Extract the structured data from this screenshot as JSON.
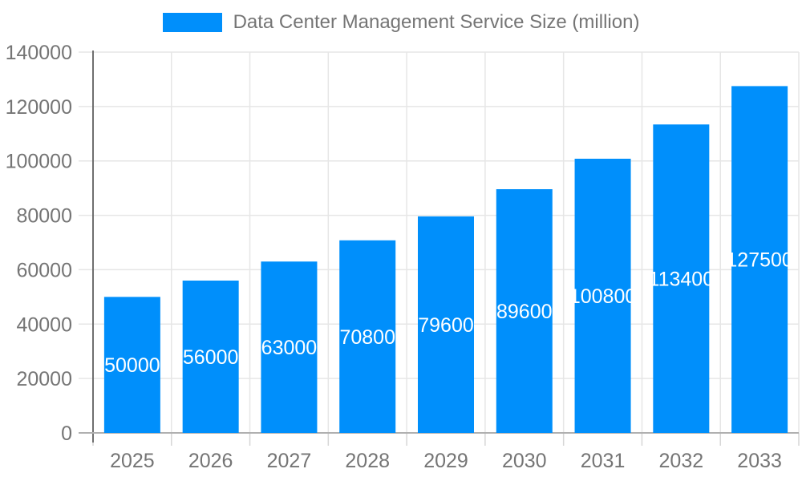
{
  "legend": {
    "swatch_color": "#008FFB",
    "label": "Data Center Management Service Size (million)"
  },
  "chart_data": {
    "type": "bar",
    "title": "Data Center Management Service Size (million)",
    "series_name": "Data Center Management Service Size (million)",
    "categories": [
      "2025",
      "2026",
      "2027",
      "2028",
      "2029",
      "2030",
      "2031",
      "2032",
      "2033"
    ],
    "values": [
      50000,
      56000,
      63000,
      70800,
      79600,
      89600,
      100800,
      113400,
      127500
    ],
    "xlabel": "",
    "ylabel": "",
    "ylim": [
      0,
      140000
    ],
    "ytick_step": 20000,
    "yticks": [
      0,
      20000,
      40000,
      60000,
      80000,
      100000,
      120000,
      140000
    ],
    "grid": true,
    "legend_position": "top",
    "colors": {
      "bar": "#008FFB",
      "bar_label_text": "#ffffff",
      "axis_text": "#757575",
      "gridline": "#e6e6e6",
      "tick": "#d6d6d6",
      "y_axis_line": "#6f6f6f",
      "x_axis_line": "#b0b0b0",
      "background": "#ffffff"
    }
  }
}
